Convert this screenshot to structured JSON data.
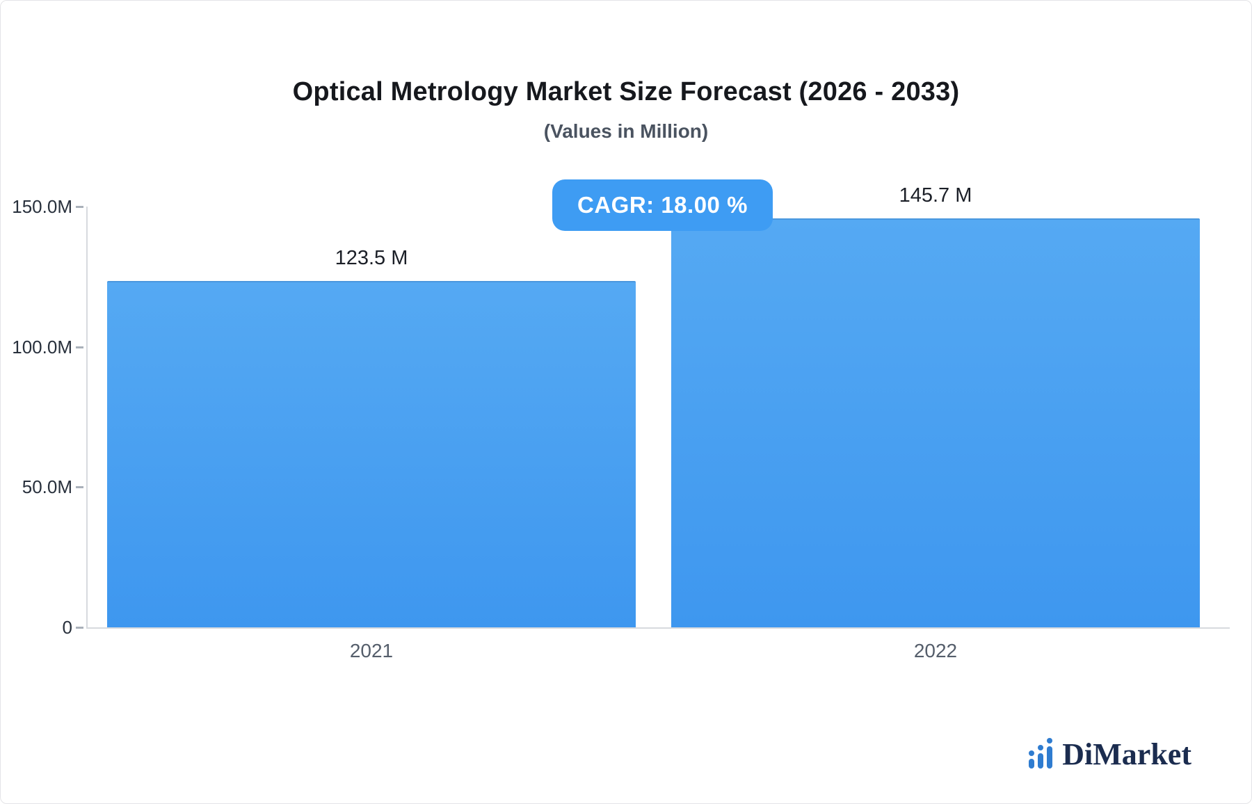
{
  "chart_data": {
    "type": "bar",
    "title": "Optical Metrology Market Size Forecast (2026 - 2033)",
    "subtitle": "(Values in Million)",
    "categories": [
      "2021",
      "2022"
    ],
    "values": [
      123.5,
      145.7
    ],
    "value_labels": [
      "123.5 M",
      "145.7 M"
    ],
    "ylim": [
      0,
      150
    ],
    "yticks": [
      {
        "value": 150,
        "label": "150.0M"
      },
      {
        "value": 100,
        "label": "100.0M"
      },
      {
        "value": 50,
        "label": "50.0M"
      },
      {
        "value": 0,
        "label": "0"
      }
    ],
    "annotation": "CAGR: 18.00 %",
    "annotation_color": "#3E9CF3",
    "grid": false,
    "legend": false,
    "bar_color_top": "#55A9F3",
    "bar_color_bottom": "#3E97EF",
    "bar_edge_color": "#4A97DE",
    "axis_color": "#d7dade"
  },
  "branding": {
    "logo_text": "DiMarket",
    "logo_color": "#1B2C4F",
    "icon_color": "#2F7CD0"
  }
}
